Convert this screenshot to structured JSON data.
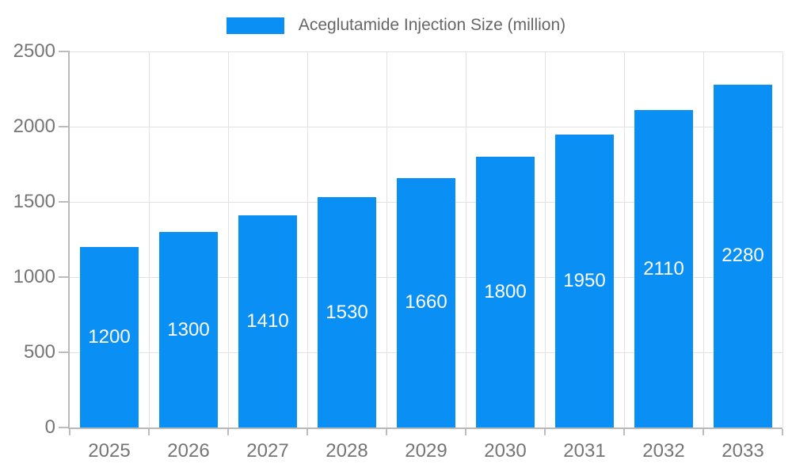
{
  "legend": {
    "label": "Aceglutamide Injection Size (million)"
  },
  "chart_data": {
    "type": "bar",
    "title": "",
    "xlabel": "",
    "ylabel": "",
    "categories": [
      "2025",
      "2026",
      "2027",
      "2028",
      "2029",
      "2030",
      "2031",
      "2032",
      "2033"
    ],
    "series": [
      {
        "name": "Aceglutamide Injection Size (million)",
        "values": [
          1200,
          1300,
          1410,
          1530,
          1660,
          1800,
          1950,
          2110,
          2280
        ]
      }
    ],
    "value_labels": [
      "1200",
      "1300",
      "1410",
      "1530",
      "1660",
      "1800",
      "1950",
      "2110",
      "2280"
    ],
    "ylim": [
      0,
      2500
    ],
    "yticks": [
      0,
      500,
      1000,
      1500,
      2000,
      2500
    ],
    "grid": true,
    "legend_position": "top-center",
    "colors": {
      "bar": "#0a90f5",
      "value_label_text": "#ffffff",
      "axis_text": "#757575",
      "legend_text": "#666666",
      "gridline": "#e2e2e2",
      "axis_line": "#b9b9b9"
    }
  }
}
